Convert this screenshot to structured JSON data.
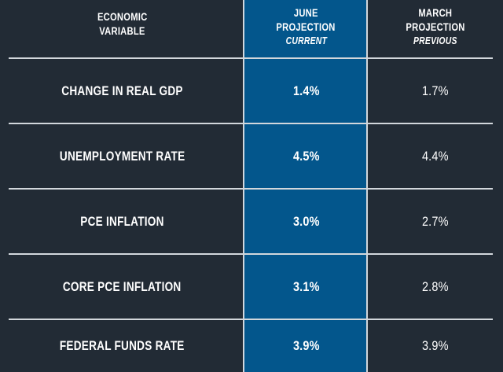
{
  "colors": {
    "background": "#222B35",
    "highlight": "#03568C",
    "grid_line": "#D2D7DC",
    "text": "#FFFFFF"
  },
  "header": {
    "economic": {
      "line1": "ECONOMIC",
      "line2": "VARIABLE"
    },
    "june": {
      "line1": "JUNE",
      "line2": "PROJECTION",
      "sub": "CURRENT"
    },
    "march": {
      "line1": "MARCH",
      "line2": "PROJECTION",
      "sub": "PREVIOUS"
    }
  },
  "rows": [
    {
      "variable": "CHANGE IN REAL GDP",
      "june": "1.4%",
      "march": "1.7%"
    },
    {
      "variable": "UNEMPLOYMENT RATE",
      "june": "4.5%",
      "march": "4.4%"
    },
    {
      "variable": "PCE INFLATION",
      "june": "3.0%",
      "march": "2.7%"
    },
    {
      "variable": "CORE PCE INFLATION",
      "june": "3.1%",
      "march": "2.8%"
    },
    {
      "variable": "FEDERAL FUNDS RATE",
      "june": "3.9%",
      "march": "3.9%"
    }
  ],
  "chart_data": {
    "type": "table",
    "columns": [
      "Economic variable",
      "June projection (current)",
      "March projection (previous)"
    ],
    "categories": [
      "Change in real GDP",
      "Unemployment rate",
      "PCE inflation",
      "Core PCE inflation",
      "Federal funds rate"
    ],
    "series": [
      {
        "name": "June projection (current)",
        "values": [
          1.4,
          4.5,
          3.0,
          3.1,
          3.9
        ]
      },
      {
        "name": "March projection (previous)",
        "values": [
          1.7,
          4.4,
          2.7,
          2.8,
          3.9
        ]
      }
    ],
    "unit": "%",
    "rows": [
      [
        "Change in real GDP",
        "1.4%",
        "1.7%"
      ],
      [
        "Unemployment rate",
        "4.5%",
        "4.4%"
      ],
      [
        "PCE inflation",
        "3.0%",
        "2.7%"
      ],
      [
        "Core PCE inflation",
        "3.1%",
        "2.8%"
      ],
      [
        "Federal funds rate",
        "3.9%",
        "3.9%"
      ]
    ]
  }
}
